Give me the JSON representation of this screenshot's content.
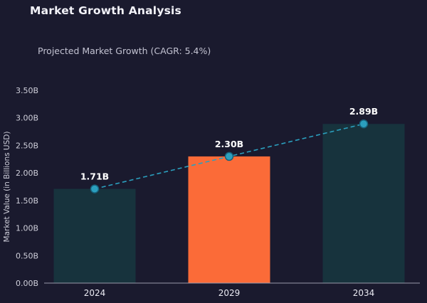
{
  "title": "Market Growth Analysis",
  "subtitle": "Projected Market Growth (CAGR: 5.4%)",
  "chart_data": {
    "type": "bar",
    "title": "Market Growth Analysis",
    "subtitle": "Projected Market Growth (CAGR: 5.4%)",
    "categories": [
      "2024",
      "2029",
      "2034"
    ],
    "values": [
      1.71,
      2.3,
      2.89
    ],
    "value_labels": [
      "1.71B",
      "2.30B",
      "2.89B"
    ],
    "xlabel": "",
    "ylabel": "Market Value (in Billions USD)",
    "ylim": [
      0,
      3.5
    ],
    "ytick_step": 0.5,
    "ytick_labels": [
      "0.00B",
      "0.50B",
      "1.00B",
      "1.50B",
      "2.00B",
      "2.50B",
      "3.00B",
      "3.50B"
    ],
    "grid": false,
    "legend": "none",
    "trend_line": "dashed line connecting bar tops with circular markers",
    "bar_colors": [
      "#17333d",
      "#fb6b38",
      "#17333d"
    ],
    "colors": {
      "background": "#1a1a2e",
      "bar_default": "#17333d",
      "bar_highlight": "#fb6b38",
      "trend": "#2b9fbe",
      "marker_fill": "#2b9fbe",
      "marker_stroke": "#17607a",
      "axis_line": "#9a9aaa",
      "tick_text": "#cfcfda",
      "category_text": "#eaeaf2",
      "value_label_text": "#ffffff",
      "title_text": "#f2f2f8",
      "subtitle_text": "#c3c3d2"
    }
  }
}
